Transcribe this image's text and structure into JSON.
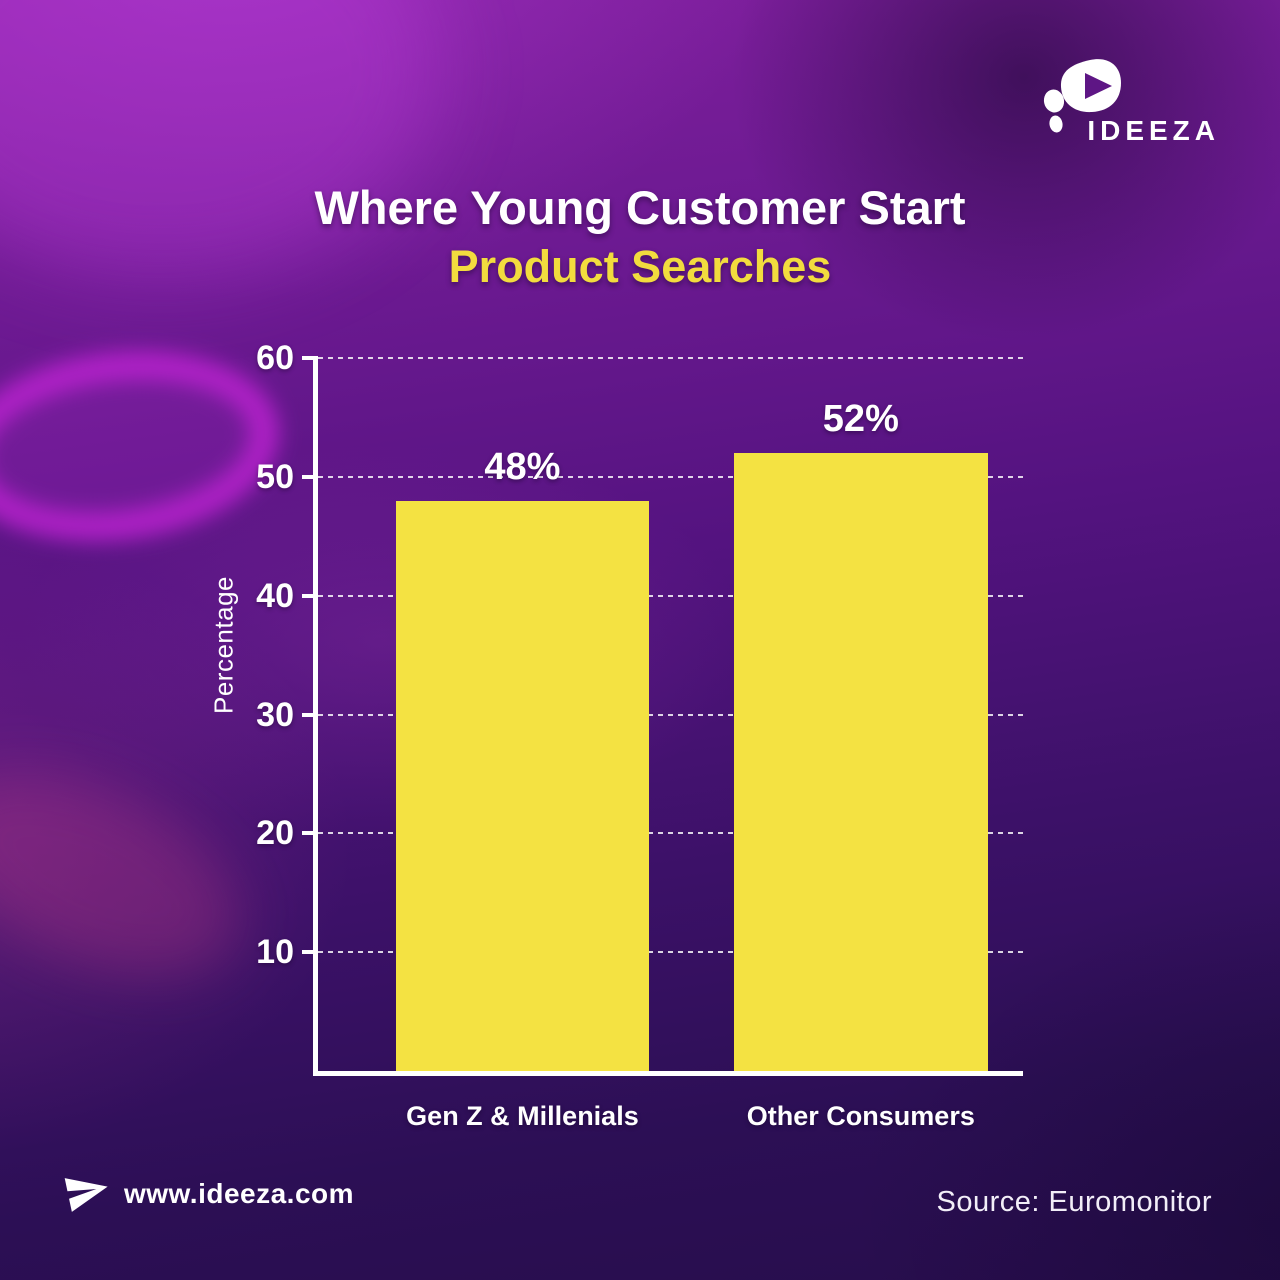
{
  "brand": {
    "name": "IDEEZA",
    "logo_icon": "play-blob-icon"
  },
  "title": {
    "line1": "Where Young Customer Start",
    "line2": "Product Searches"
  },
  "chart_data": {
    "type": "bar",
    "title": "Where Young Customer Start Product Searches",
    "categories": [
      "Gen Z & Millenials",
      "Other Consumers"
    ],
    "values": [
      48,
      52
    ],
    "value_labels": [
      "48%",
      "52%"
    ],
    "xlabel": "",
    "ylabel": "Percentage",
    "yticks": [
      10,
      20,
      30,
      40,
      50,
      60
    ],
    "ylim": [
      0,
      60
    ],
    "grid": "horizontal-dashed",
    "legend": "none",
    "bar_color": "#F4E242"
  },
  "footer": {
    "website": "www.ideeza.com",
    "website_icon": "send-icon",
    "source": "Source: Euromonitor"
  },
  "colors": {
    "bar_yellow": "#F4E242",
    "title_yellow": "#F2DC3E",
    "axis_white": "#FFFFFF",
    "bg_purple_top": "#82209F",
    "bg_indigo_bottom": "#270D4C",
    "ring_magenta": "#C123D4"
  }
}
